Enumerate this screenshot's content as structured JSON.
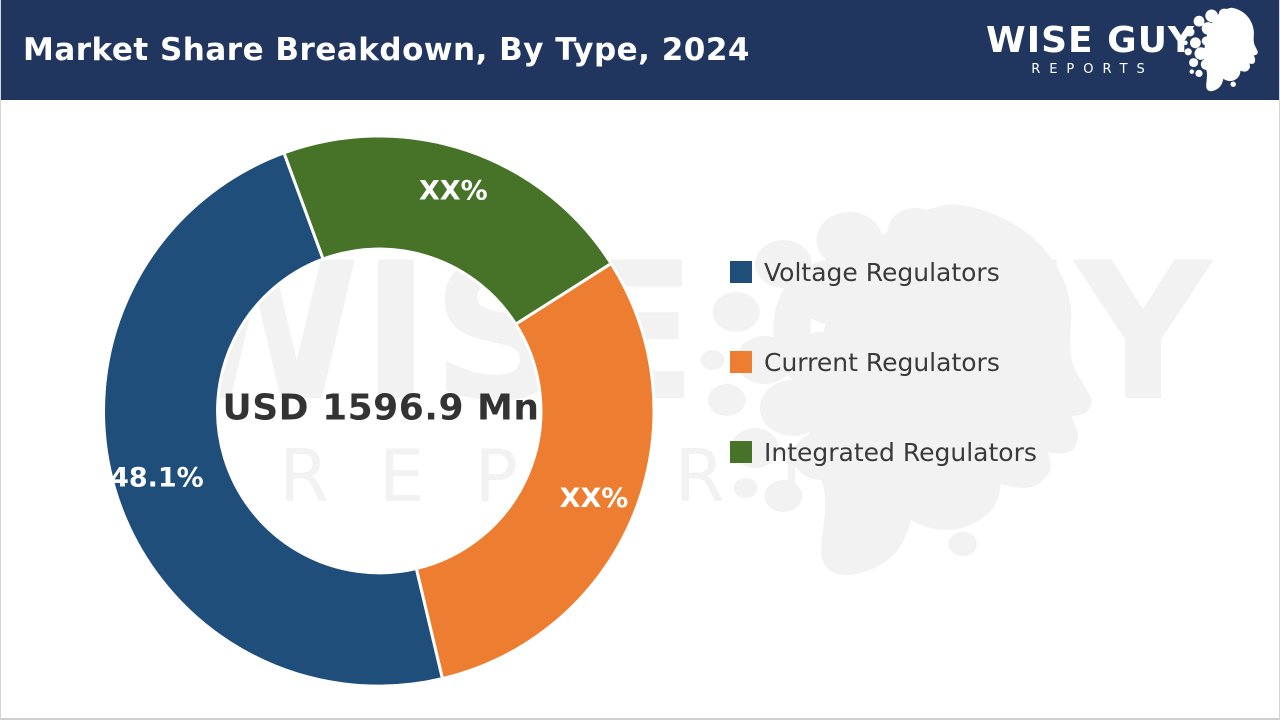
{
  "header": {
    "title": "Market Share Breakdown, By Type, 2024",
    "bg_color": "#21365f",
    "logo": {
      "line1": "WISE GUY",
      "line2": "REPORTS"
    }
  },
  "watermark": {
    "line1": "WISE GUY",
    "line2": "REPORTS",
    "color": "#f2f2f2"
  },
  "center_label": "USD 1596.9 Mn",
  "chart_data": {
    "type": "pie",
    "donut": true,
    "title": "Market Share Breakdown, By Type, 2024",
    "center_label": "USD 1596.9 Mn",
    "start_angle_deg": 110.2,
    "direction": "counterclockwise",
    "legend_position": "right",
    "slice_gap_color": "#ffffff",
    "label_color": "#ffffff",
    "slices": [
      {
        "label": "Voltage Regulators",
        "share_pct": 48.1,
        "display_pct": "48.1%",
        "color": "#1f4e7a"
      },
      {
        "label": "Current Regulators",
        "share_pct": 30.3,
        "display_pct": "XX%",
        "color": "#ed7d31"
      },
      {
        "label": "Integrated Regulators",
        "share_pct": 21.6,
        "display_pct": "XX%",
        "color": "#477328"
      }
    ]
  }
}
